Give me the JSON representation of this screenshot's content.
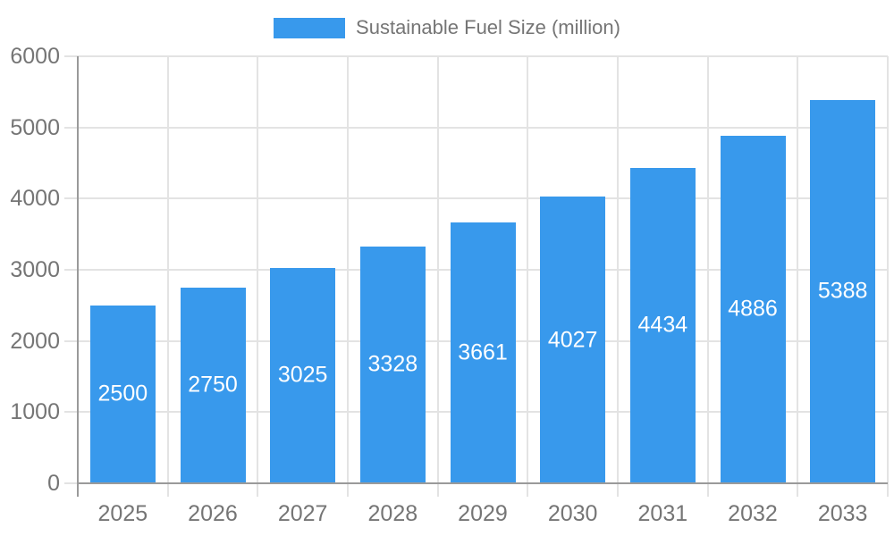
{
  "chart_data": {
    "type": "bar",
    "title": "",
    "legend": "Sustainable Fuel Size (million)",
    "legend_position": "top",
    "categories": [
      "2025",
      "2026",
      "2027",
      "2028",
      "2029",
      "2030",
      "2031",
      "2032",
      "2033"
    ],
    "series": [
      {
        "name": "Sustainable Fuel Size (million)",
        "values": [
          2500,
          2750,
          3025,
          3328,
          3661,
          4027,
          4434,
          4886,
          5388
        ]
      }
    ],
    "bar_value_labels": [
      "2500",
      "2750",
      "3025",
      "3328",
      "3661",
      "4027",
      "4434",
      "4886",
      "5388"
    ],
    "xlabel": "",
    "ylabel": "",
    "ylim": [
      0,
      6000
    ],
    "ytick_step": 1000,
    "ytick_labels": [
      "0",
      "1000",
      "2000",
      "3000",
      "4000",
      "5000",
      "6000"
    ],
    "grid": true,
    "colors": {
      "bar": "#3899EC",
      "tick_label": "#757575",
      "legend_text": "#757575",
      "gridline": "#E3E3E3",
      "axis_line": "#9A9A9A",
      "bar_label": "#FFFFFF",
      "background": "#FFFFFF"
    }
  }
}
